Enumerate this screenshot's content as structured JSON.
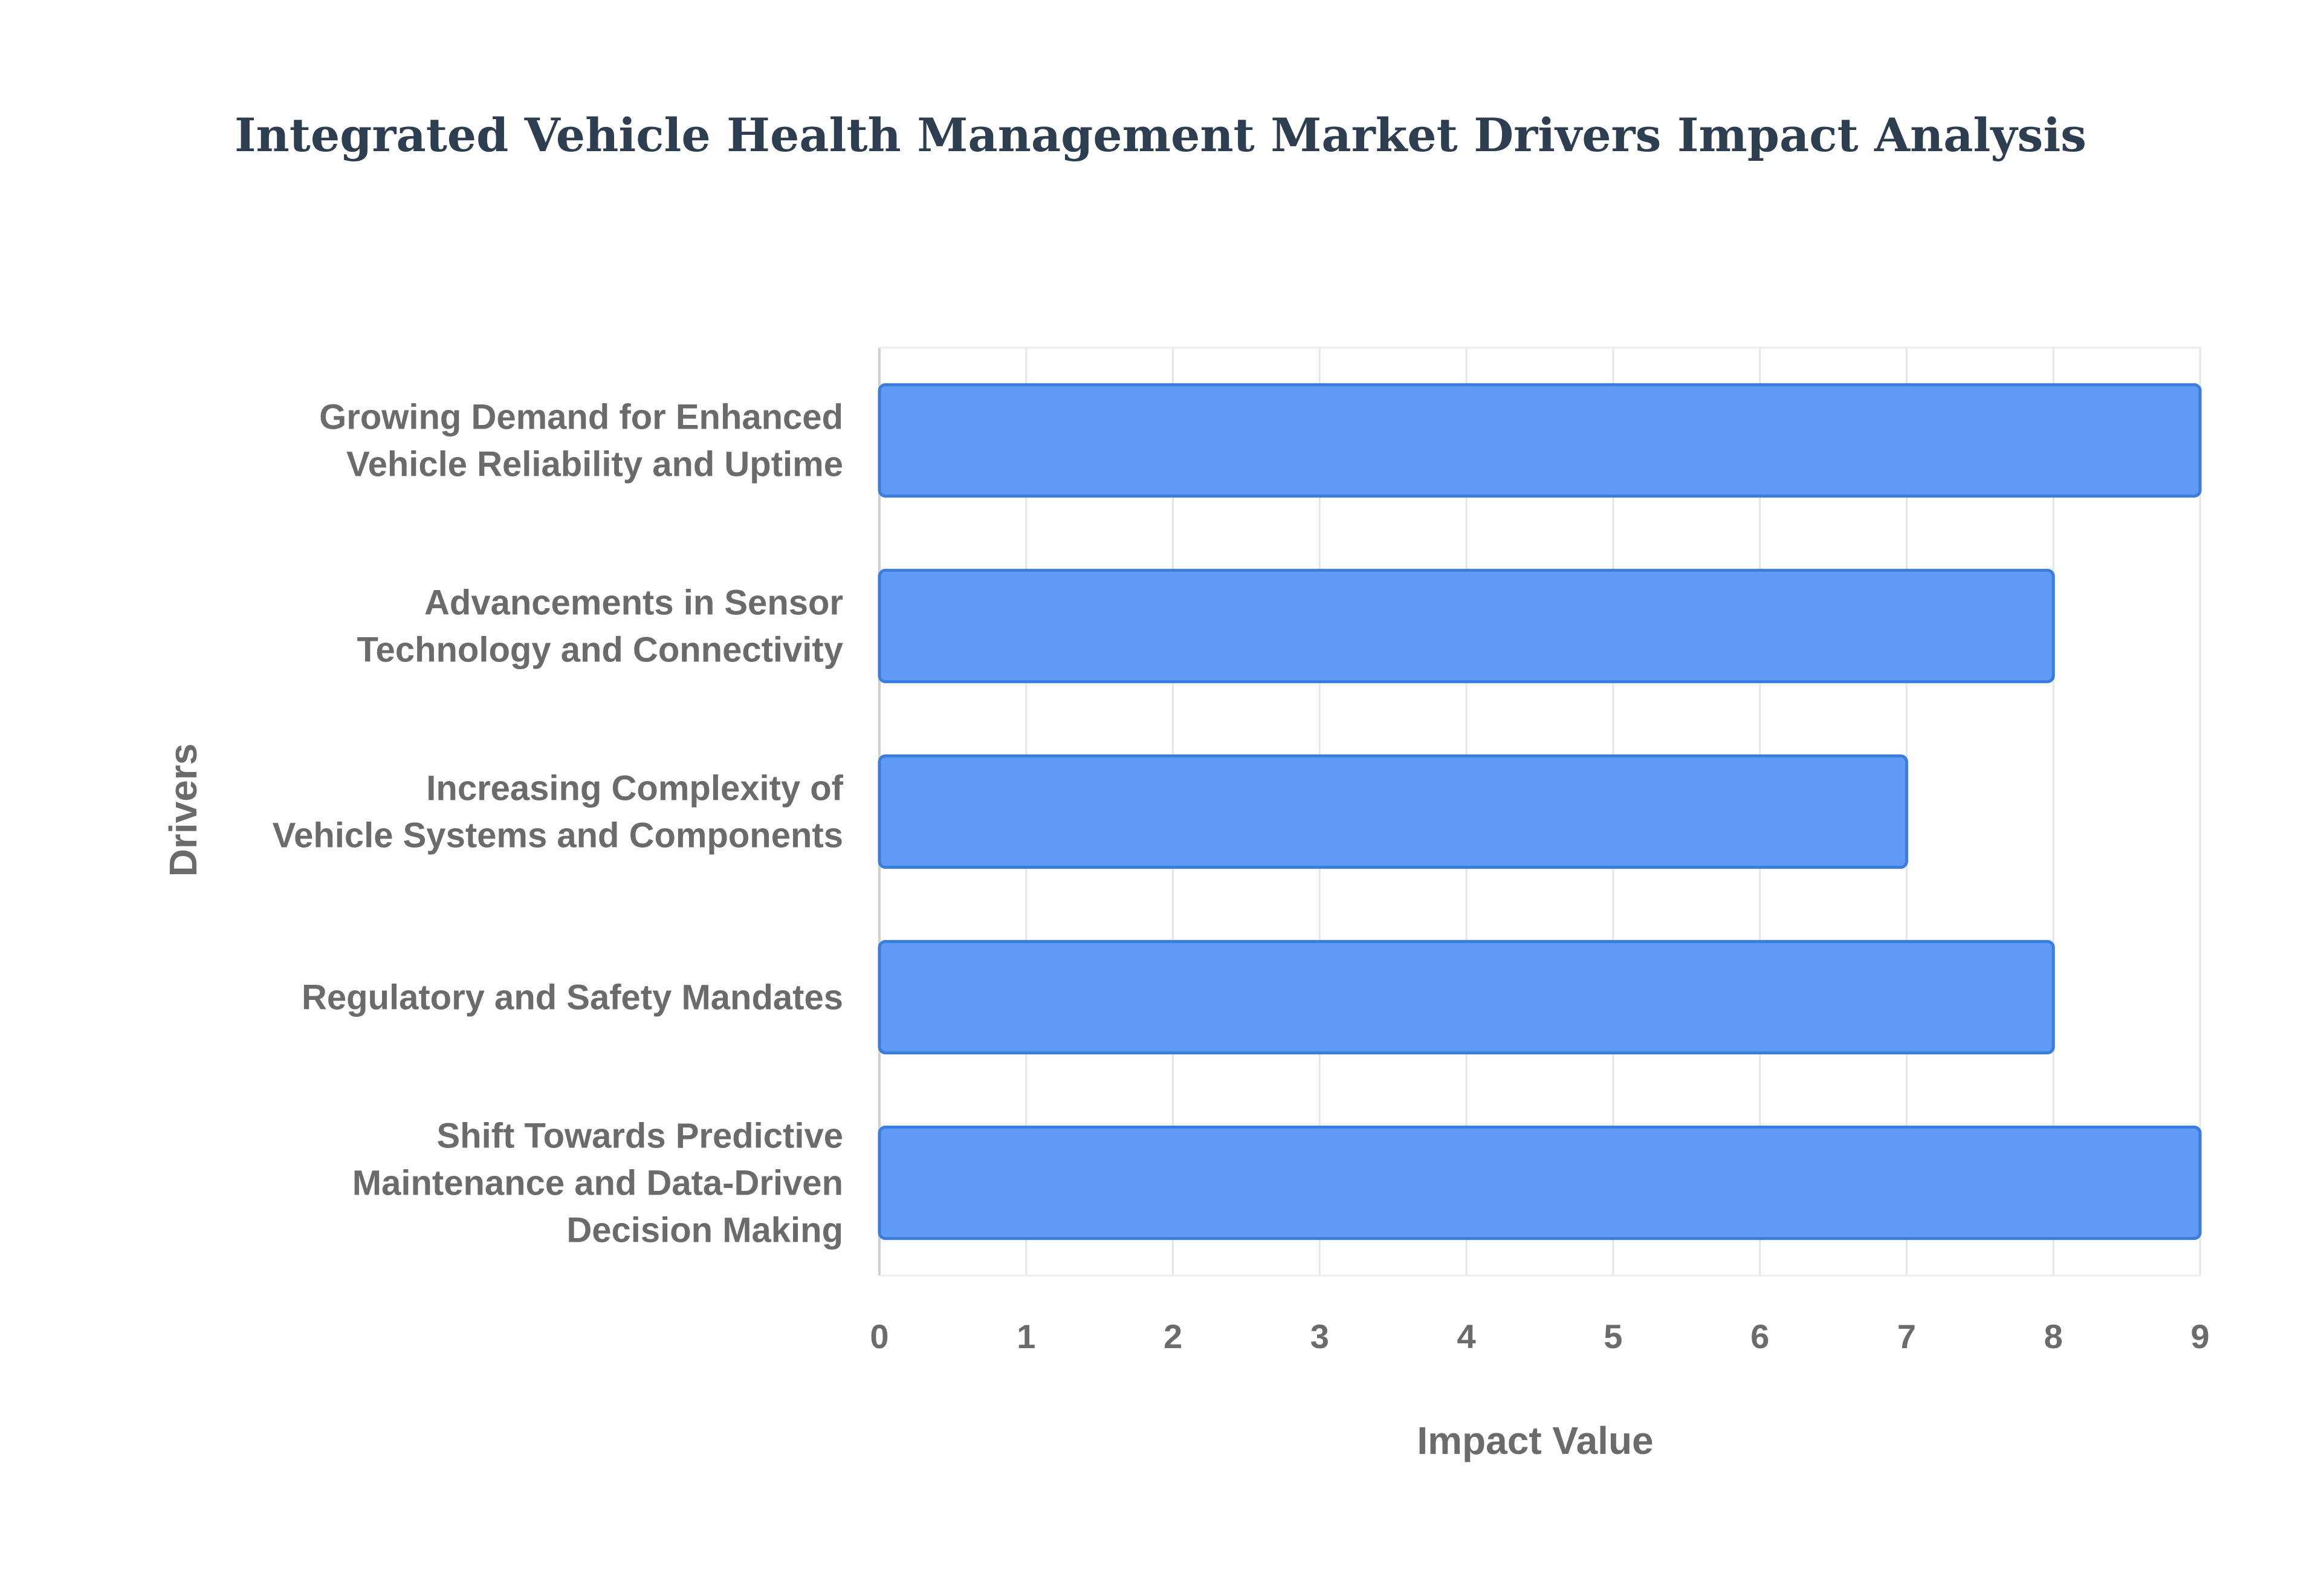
{
  "chart_data": {
    "type": "bar",
    "orientation": "horizontal",
    "title": "Integrated Vehicle Health Management Market Drivers Impact Analysis",
    "xlabel": "Impact Value",
    "ylabel": "Drivers",
    "xlim": [
      0,
      9
    ],
    "xticks": [
      0,
      1,
      2,
      3,
      4,
      5,
      6,
      7,
      8,
      9
    ],
    "grid": true,
    "bar_color": "#6199f6",
    "bar_edge_color": "#3b7ddd",
    "categories": [
      [
        "Growing Demand for Enhanced",
        "Vehicle Reliability and Uptime"
      ],
      [
        "Advancements in Sensor",
        "Technology and Connectivity"
      ],
      [
        "Increasing Complexity of",
        "Vehicle Systems and Components"
      ],
      [
        "Regulatory and Safety Mandates"
      ],
      [
        "Shift Towards Predictive",
        "Maintenance and Data-Driven",
        "Decision Making"
      ]
    ],
    "values": [
      9,
      8,
      7,
      8,
      9
    ]
  }
}
